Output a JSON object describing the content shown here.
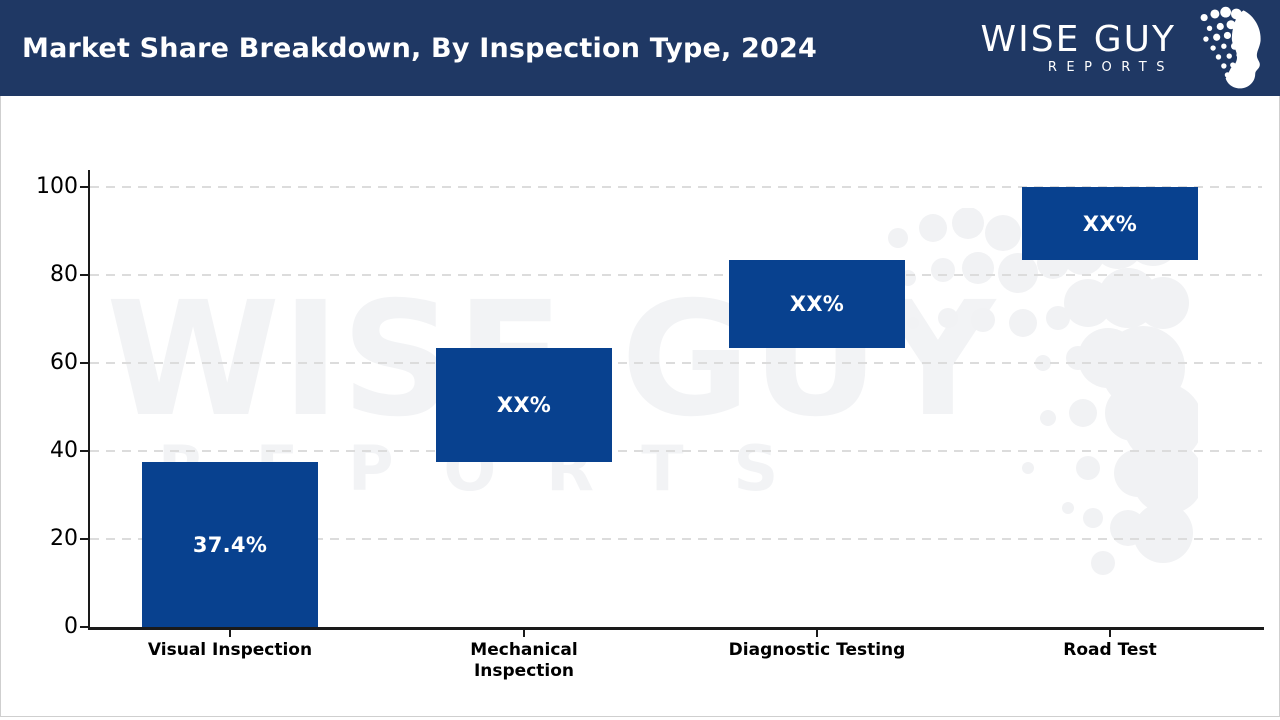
{
  "header": {
    "title": "Market Share Breakdown, By Inspection Type, 2024",
    "logo": {
      "brand_line1": "WISE GUY",
      "brand_line2": "REPORTS"
    }
  },
  "watermark": {
    "line1": "WISE GUY",
    "line2": "REPORTS"
  },
  "colors": {
    "header_bg": "#1f3864",
    "bar": "#08418f",
    "grid": "#dcdcdc",
    "axis": "#1a1a1a",
    "bar_label": "#ffffff"
  },
  "chart_data": {
    "type": "bar",
    "subtype": "waterfall-floating-bars",
    "title": "Market Share Breakdown, By Inspection Type, 2024",
    "categories": [
      "Visual Inspection",
      "Mechanical Inspection",
      "Diagnostic Testing",
      "Road Test"
    ],
    "segments": [
      {
        "category": "Visual Inspection",
        "start": 0,
        "end": 37.4,
        "label": "37.4%"
      },
      {
        "category": "Mechanical Inspection",
        "start": 37.4,
        "end": 63.4,
        "label": "XX%"
      },
      {
        "category": "Diagnostic Testing",
        "start": 63.4,
        "end": 83.4,
        "label": "XX%"
      },
      {
        "category": "Road Test",
        "start": 83.4,
        "end": 100,
        "label": "XX%"
      }
    ],
    "ylim": [
      0,
      100
    ],
    "yticks": [
      0,
      20,
      40,
      60,
      80,
      100
    ],
    "xlabel": "",
    "ylabel": "",
    "grid": "horizontal-dashed",
    "legend": "none",
    "bar_color": "#08418f",
    "bar_label_color": "#ffffff"
  }
}
